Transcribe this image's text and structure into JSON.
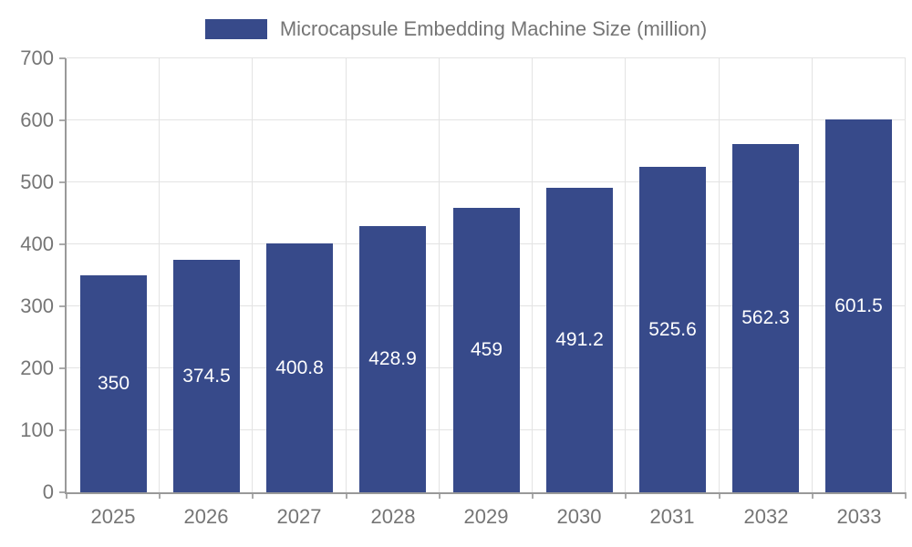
{
  "chart_data": {
    "type": "bar",
    "title": "Microcapsule Embedding Machine Size (million)",
    "categories": [
      "2025",
      "2026",
      "2027",
      "2028",
      "2029",
      "2030",
      "2031",
      "2032",
      "2033"
    ],
    "values": [
      350,
      374.5,
      400.8,
      428.9,
      459,
      491.2,
      525.6,
      562.3,
      601.5
    ],
    "value_labels": [
      "350",
      "374.5",
      "400.8",
      "428.9",
      "459",
      "491.2",
      "525.6",
      "562.3",
      "601.5"
    ],
    "xlabel": "",
    "ylabel": "",
    "ylim": [
      0,
      700
    ],
    "yticks": [
      0,
      100,
      200,
      300,
      400,
      500,
      600,
      700
    ],
    "grid": true,
    "legend_position": "top-center",
    "legend_entries": [
      "Microcapsule Embedding Machine Size (million)"
    ],
    "colors": {
      "bar": "#374a8a",
      "bar_value_label": "#ffffff",
      "axis_text": "#757575",
      "axis_line": "#999999",
      "tick": "#aaaaaa",
      "gridline": "#e3e3e3",
      "background": "#ffffff"
    }
  }
}
